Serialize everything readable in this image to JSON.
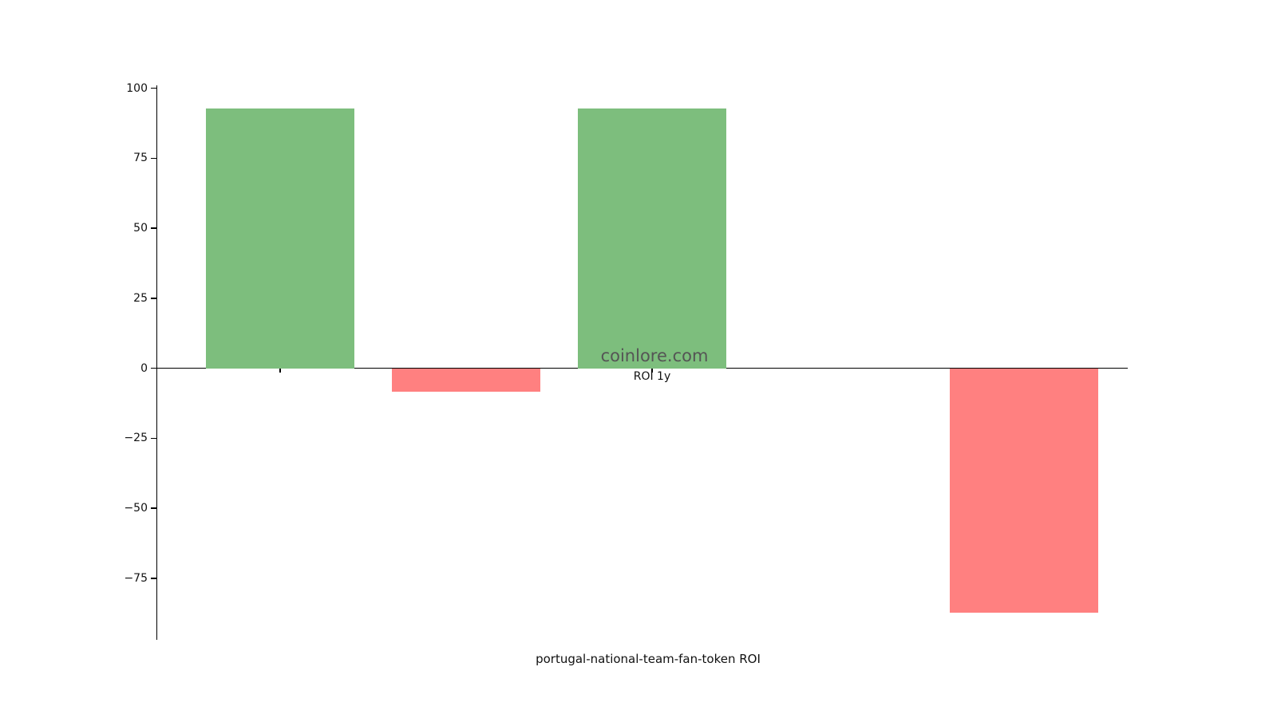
{
  "page": {
    "background": "#ffffff"
  },
  "chart_data": {
    "type": "bar",
    "title": "portugal-national-team-fan-token ROI",
    "watermark": "coinlore.com",
    "xlabel": "",
    "ylabel": "",
    "categories": [
      "",
      "",
      "ROI 1y",
      "",
      ""
    ],
    "values": [
      92.6,
      -8.2,
      92.6,
      0,
      -87
    ],
    "ylim": [
      -97,
      101
    ],
    "ytick_values": [
      100,
      75,
      50,
      25,
      0,
      -25,
      -50,
      -75
    ],
    "ytick_labels": [
      "100",
      "75",
      "50",
      "25",
      "0",
      "−25",
      "−50",
      "−75"
    ],
    "x_tick_positions": [
      0,
      2
    ],
    "grid": false,
    "legend": "none",
    "colors": {
      "positive": "#7dbe7d",
      "negative": "#ff8080",
      "axis": "#000000",
      "text": "#111111",
      "watermark": "#555555"
    }
  }
}
